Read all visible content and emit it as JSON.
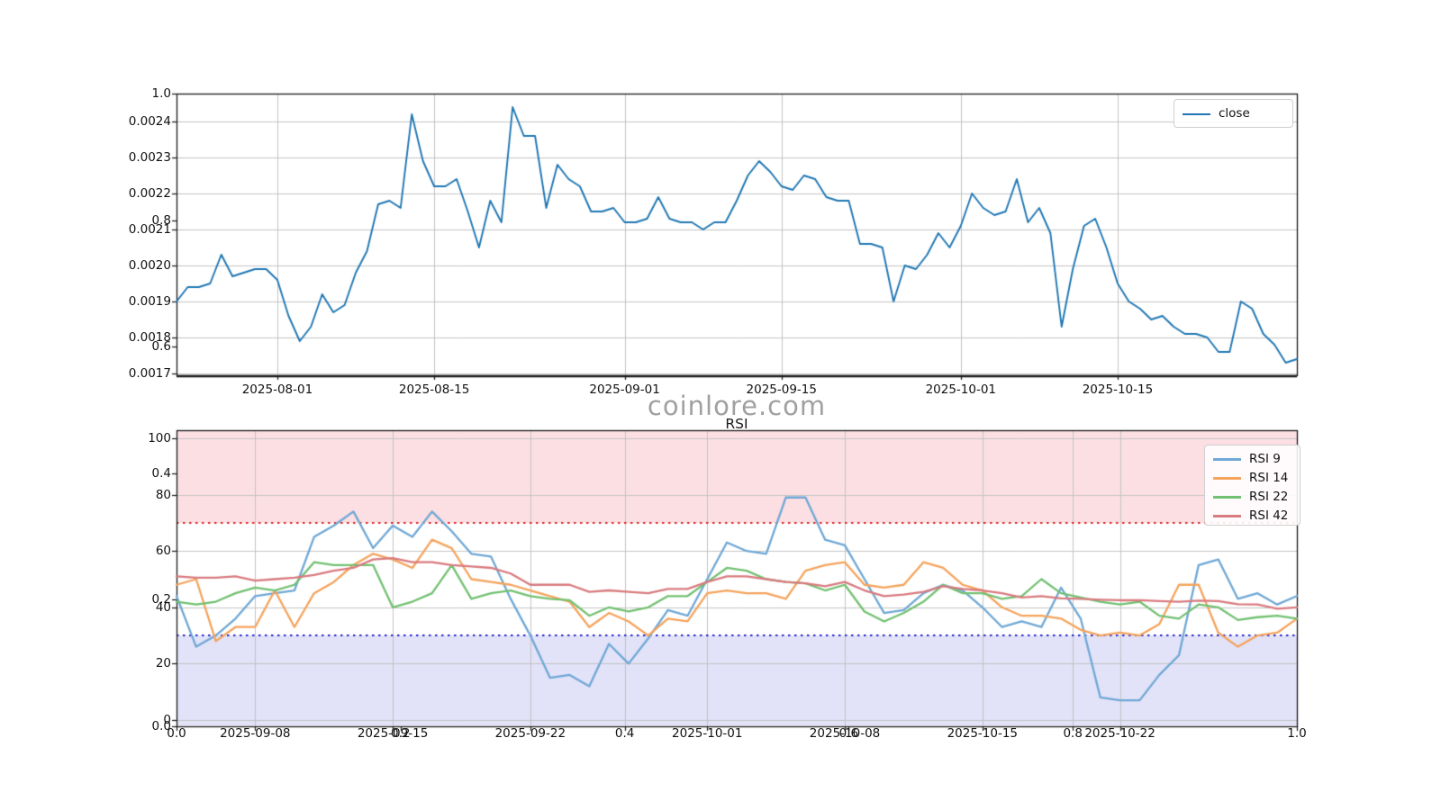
{
  "watermark": {
    "text": "coinlore.com"
  },
  "price_chart": {
    "y_tick_labels": [
      "0.0017",
      "0.0018",
      "0.0019",
      "0.0020",
      "0.0021",
      "0.0022",
      "0.0023",
      "0.0024"
    ],
    "x_ticks": [
      {
        "label": "2025-08-01",
        "index": 9
      },
      {
        "label": "2025-08-15",
        "index": 23
      },
      {
        "label": "2025-09-01",
        "index": 40
      },
      {
        "label": "2025-09-15",
        "index": 54
      },
      {
        "label": "2025-10-01",
        "index": 70
      },
      {
        "label": "2025-10-15",
        "index": 84
      }
    ],
    "legend": [
      {
        "label": "close",
        "color": "#1f77b4"
      }
    ]
  },
  "rsi_chart": {
    "title": "RSI",
    "y_tick_labels": [
      "0",
      "20",
      "40",
      "60",
      "80",
      "100"
    ],
    "x_ticks": [
      {
        "label": "2025-09-08",
        "index": 4
      },
      {
        "label": "2025-09-15",
        "index": 11
      },
      {
        "label": "2025-09-22",
        "index": 18
      },
      {
        "label": "2025-10-01",
        "index": 27
      },
      {
        "label": "2025-10-08",
        "index": 34
      },
      {
        "label": "2025-10-15",
        "index": 41
      },
      {
        "label": "2025-10-22",
        "index": 48
      }
    ],
    "overbought_level": 70,
    "oversold_level": 30,
    "overbought_band_color": "#fbdfe3",
    "oversold_band_color": "#e2e2f8",
    "overbought_line_color": "#e02424",
    "oversold_line_color": "#2626cc",
    "legend": [
      {
        "label": "RSI 9",
        "color": "#6fa8d6"
      },
      {
        "label": "RSI 14",
        "color": "#f5a45d"
      },
      {
        "label": "RSI 22",
        "color": "#72c172"
      },
      {
        "label": "RSI 42",
        "color": "#d97b7f"
      }
    ]
  },
  "overlay_axis": {
    "y_tick_labels": [
      "1.0",
      "0.8",
      "0.6",
      "0.4",
      "0.2",
      "0.0"
    ],
    "x_tick_labels": [
      "0.0",
      "0.2",
      "0.4",
      "0.6",
      "0.8",
      "1.0"
    ]
  },
  "chart_data": [
    {
      "type": "line",
      "name": "close",
      "color": "#1f77b4",
      "start_date": "2025-07-23",
      "frequency": "daily",
      "ylim": [
        0.001695,
        0.002478
      ],
      "values": [
        0.0019,
        0.00194,
        0.00194,
        0.00195,
        0.00203,
        0.00197,
        0.00198,
        0.00199,
        0.00199,
        0.00196,
        0.00186,
        0.00179,
        0.00183,
        0.00192,
        0.00187,
        0.00189,
        0.00198,
        0.00204,
        0.00217,
        0.00218,
        0.00216,
        0.00242,
        0.00229,
        0.00222,
        0.00222,
        0.00224,
        0.00215,
        0.00205,
        0.00218,
        0.00212,
        0.00244,
        0.00236,
        0.00236,
        0.00216,
        0.00228,
        0.00224,
        0.00222,
        0.00215,
        0.00215,
        0.00216,
        0.00212,
        0.00212,
        0.00213,
        0.00219,
        0.00213,
        0.00212,
        0.00212,
        0.0021,
        0.00212,
        0.00212,
        0.00218,
        0.00225,
        0.00229,
        0.00226,
        0.00222,
        0.00221,
        0.00225,
        0.00224,
        0.00219,
        0.00218,
        0.00218,
        0.00206,
        0.00206,
        0.00205,
        0.0019,
        0.002,
        0.00199,
        0.00203,
        0.00209,
        0.00205,
        0.00211,
        0.0022,
        0.00216,
        0.00214,
        0.00215,
        0.00224,
        0.00212,
        0.00216,
        0.00209,
        0.00183,
        0.00199,
        0.00211,
        0.00213,
        0.00205,
        0.00195,
        0.0019,
        0.00188,
        0.00185,
        0.00186,
        0.00183,
        0.00181,
        0.00181,
        0.0018,
        0.00176,
        0.00176,
        0.0019,
        0.00188,
        0.00181,
        0.00178,
        0.00173,
        0.00174
      ]
    },
    {
      "type": "line",
      "title": "RSI",
      "start_date": "2025-09-04",
      "frequency": "daily",
      "ylim": [
        -2,
        103
      ],
      "series": [
        {
          "name": "RSI 9",
          "color": "#6fa8d6",
          "values": [
            44,
            26,
            30,
            36,
            44,
            45,
            46,
            65,
            69,
            74,
            61,
            69,
            65,
            74,
            67,
            59,
            58,
            43,
            30,
            15,
            16,
            12,
            27,
            20,
            29,
            39,
            37,
            50,
            63,
            60,
            59,
            79,
            79,
            64,
            62,
            50,
            38,
            39,
            45,
            48,
            46,
            40,
            33,
            35,
            33,
            47,
            36,
            8,
            7,
            7,
            16,
            23,
            55,
            57,
            43,
            45,
            41,
            44
          ]
        },
        {
          "name": "RSI 14",
          "color": "#f5a45d",
          "values": [
            48,
            50,
            28,
            33,
            33,
            46,
            33,
            45,
            49,
            55,
            59,
            57,
            54,
            64,
            61,
            50,
            49,
            48,
            46,
            44,
            42,
            33,
            38,
            35,
            30,
            36,
            35,
            45,
            46,
            45,
            45,
            43,
            53,
            55,
            56,
            48,
            47,
            48,
            56,
            54,
            48,
            46,
            40,
            37,
            37,
            36,
            32,
            30,
            31,
            30,
            34,
            48,
            48,
            31,
            26,
            30,
            31,
            36
          ]
        },
        {
          "name": "RSI 22",
          "color": "#72c172",
          "values": [
            42,
            41,
            42,
            45,
            47,
            46,
            48,
            56,
            55,
            55,
            55,
            40,
            42,
            45,
            55,
            43,
            45,
            46,
            44,
            43,
            42.5,
            37,
            40,
            38.5,
            40,
            44,
            44,
            49,
            54,
            53,
            50,
            49,
            48.5,
            46,
            48,
            38.5,
            35,
            38,
            42,
            48,
            45,
            45,
            43,
            44,
            50,
            45,
            43.5,
            42,
            41,
            42,
            37,
            36,
            41,
            40,
            35.5,
            36.5,
            37,
            36
          ]
        },
        {
          "name": "RSI 42",
          "color": "#d97b7f",
          "values": [
            51,
            50.5,
            50.5,
            51,
            49.5,
            50,
            50.5,
            51.5,
            53,
            54,
            57,
            57.5,
            56,
            56,
            55,
            54.5,
            54,
            52,
            48,
            48,
            48,
            45.5,
            46,
            45.5,
            45,
            46.5,
            46.5,
            49,
            51,
            51,
            50,
            49,
            48.5,
            47.5,
            49,
            46,
            44,
            44.5,
            45.5,
            47.5,
            46.5,
            46,
            45,
            43.5,
            44,
            43.2,
            43,
            42.7,
            42.5,
            42.5,
            42.2,
            42,
            42.4,
            42.2,
            41.1,
            41,
            39.5,
            40
          ]
        }
      ],
      "hlines": [
        {
          "y": 70,
          "style": "dotted",
          "color": "#e02424"
        },
        {
          "y": 30,
          "style": "dotted",
          "color": "#2626cc"
        }
      ],
      "bands": [
        {
          "range": [
            70,
            103
          ],
          "color": "#fbdfe3"
        },
        {
          "range": [
            -2,
            30
          ],
          "color": "#e2e2f8"
        }
      ]
    }
  ]
}
